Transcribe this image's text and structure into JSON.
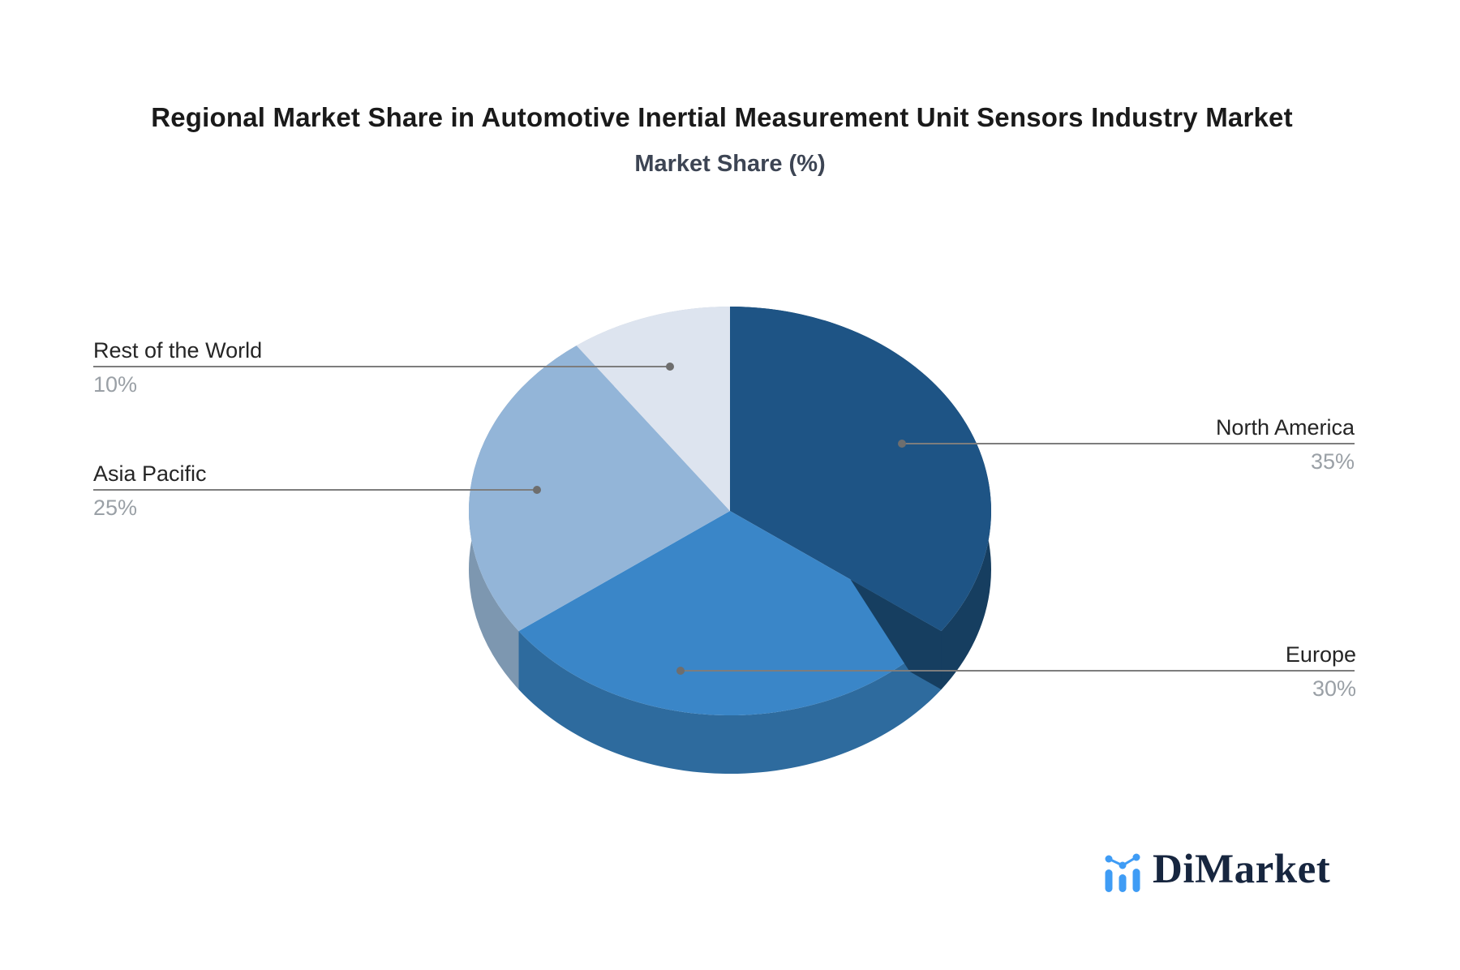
{
  "header": {
    "title": "Regional Market Share in Automotive Inertial Measurement Unit Sensors Industry Market",
    "subtitle": "Market Share (%)"
  },
  "chart_data": {
    "type": "pie",
    "style": "pie-3d",
    "title": "Regional Market Share in Automotive Inertial Measurement Unit Sensors Industry Market",
    "subtitle": "Market Share (%)",
    "start_angle_deg": 90,
    "direction": "clockwise",
    "legend": "none",
    "label_line_color": "#7d7d7d",
    "label_dot_color": "#6e6e6e",
    "slices": [
      {
        "label": "North America",
        "value": 35,
        "value_label": "35%",
        "color": "#1e5485",
        "side_color": "#163e60"
      },
      {
        "label": "Europe",
        "value": 30,
        "value_label": "30%",
        "color": "#3a86c8",
        "side_color": "#2e6b9e"
      },
      {
        "label": "Asia Pacific",
        "value": 25,
        "value_label": "25%",
        "color": "#93b5d8",
        "side_color": "#7d97b0"
      },
      {
        "label": "Rest of the World",
        "value": 10,
        "value_label": "10%",
        "color": "#dde4ef",
        "side_color": "#b9c3d2"
      }
    ]
  },
  "logo": {
    "text": "DiMarket",
    "icon": "bar-line-chart-icon",
    "bar_color": "#3f9cf5",
    "text_color": "#17263f"
  }
}
